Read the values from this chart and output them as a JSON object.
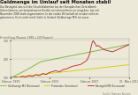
{
  "title": "Geldmenge im Umlauf seit Monaten stabil",
  "subtitle_lines": [
    "Das Basisgeld, das sich die Geschäftsbanken bei der Europäischen Zentralbank",
    "leihen können, um beispielsweise Kredite an Unternehmen zu vergeben, hat seit",
    "November 2008 stark zugenommen. In der realen Wirtschaft ist es aber nicht an-",
    "gekommen. Es ist nicht mehr Geld im Umlauf (Geldmenge M3) als zuvor."
  ],
  "entwicklung_label": "Entwicklung (Prozent, 1999 = 100 Prozent)",
  "x_labels": [
    "Februar 1999",
    "Februar 2003",
    "Februar 2007",
    "31. März 2010"
  ],
  "source": "Quelle: Thomson Reuters",
  "background_color": "#ede9d8",
  "plot_bg_color": "#ede9d8",
  "title_color": "#111111",
  "subtitle_color": "#333333",
  "y_min": 100,
  "y_max": 310,
  "y_ticks": [
    100,
    200,
    300
  ],
  "y_tick_labels": [
    "100",
    "200",
    "300"
  ],
  "legend": [
    {
      "label": "Geldmenge M3 (Euroraum)",
      "color": "#7db84a"
    },
    {
      "label": "Preisindex (Euroraum)",
      "color": "#d4c800"
    },
    {
      "label": "Basisgeld M0 (Euroraum)",
      "color": "#b22222"
    }
  ],
  "green_line": [
    100,
    102,
    104,
    106,
    108,
    111,
    113,
    116,
    118,
    121,
    123,
    126,
    129,
    131,
    134,
    137,
    139,
    142,
    145,
    148,
    150,
    153,
    156,
    159,
    162,
    165,
    168,
    171,
    174,
    177,
    180,
    183,
    186,
    187,
    188,
    189,
    190,
    191,
    192,
    193,
    194,
    195,
    196,
    197,
    198,
    199,
    200,
    201,
    202,
    203,
    204,
    205,
    206,
    207,
    208,
    209,
    210,
    211,
    212,
    213,
    214,
    215,
    216,
    217,
    218,
    219,
    220,
    221,
    222,
    223,
    224,
    225,
    226,
    227,
    228,
    229,
    230,
    231,
    232,
    233,
    234,
    235,
    236,
    237,
    238,
    239,
    240,
    241,
    242,
    243,
    244,
    245,
    246,
    247,
    248,
    249,
    250,
    251,
    252,
    253,
    254,
    255,
    256,
    257,
    258,
    259,
    260,
    261,
    262,
    263,
    264,
    265,
    266,
    267,
    268,
    269,
    270,
    271,
    272,
    273,
    274,
    275,
    276,
    277,
    278,
    279,
    280
  ],
  "yellow_line": [
    100,
    100,
    101,
    101,
    102,
    102,
    103,
    103,
    104,
    104,
    105,
    105,
    106,
    106,
    107,
    107,
    108,
    108,
    109,
    109,
    110,
    110,
    111,
    111,
    112,
    112,
    113,
    113,
    114,
    114,
    115,
    115,
    116,
    116,
    117,
    117,
    118,
    118,
    119,
    119,
    120,
    120,
    121,
    121,
    122,
    122,
    123,
    123,
    124,
    124,
    125,
    125,
    126,
    126,
    127,
    127,
    128,
    128,
    129,
    129,
    130,
    130,
    131,
    131,
    132,
    132,
    133,
    133,
    134,
    134,
    135,
    135,
    136,
    136,
    137,
    137,
    138,
    138,
    139,
    139,
    140,
    140,
    141,
    141,
    142,
    142,
    143,
    143,
    144,
    144,
    145,
    145,
    146,
    146,
    147,
    147,
    148,
    148,
    149,
    149,
    150,
    150,
    151,
    151,
    152,
    152,
    153,
    153,
    154,
    154,
    155,
    155,
    156,
    156,
    157,
    157,
    158,
    158,
    159,
    159,
    160,
    160,
    161,
    161,
    162,
    162,
    163,
    163,
    164,
    164,
    165,
    165,
    166,
    166,
    167,
    167,
    168,
    168,
    169,
    169,
    170
  ],
  "red_line": [
    100,
    101,
    100,
    99,
    101,
    102,
    103,
    102,
    101,
    100,
    99,
    101,
    103,
    105,
    107,
    106,
    104,
    103,
    102,
    104,
    107,
    109,
    111,
    110,
    108,
    107,
    106,
    108,
    111,
    114,
    116,
    115,
    113,
    112,
    111,
    113,
    116,
    119,
    122,
    121,
    119,
    118,
    117,
    119,
    122,
    125,
    128,
    129,
    130,
    131,
    132,
    134,
    136,
    137,
    136,
    135,
    134,
    133,
    132,
    134,
    137,
    140,
    143,
    144,
    145,
    146,
    147,
    149,
    151,
    153,
    155,
    157,
    159,
    161,
    162,
    163,
    164,
    165,
    166,
    167,
    168,
    169,
    170,
    171,
    174,
    177,
    180,
    183,
    186,
    189,
    192,
    199,
    209,
    219,
    234,
    258,
    278,
    293,
    300,
    292,
    287,
    277,
    270,
    272,
    274,
    270,
    267,
    262,
    260,
    257,
    254,
    252,
    250,
    248,
    247,
    246,
    245,
    244,
    243,
    242,
    241,
    240,
    242,
    244,
    246,
    248,
    250,
    252,
    254,
    256,
    258,
    260,
    262,
    264,
    266,
    268,
    270,
    272,
    274,
    276,
    278
  ]
}
